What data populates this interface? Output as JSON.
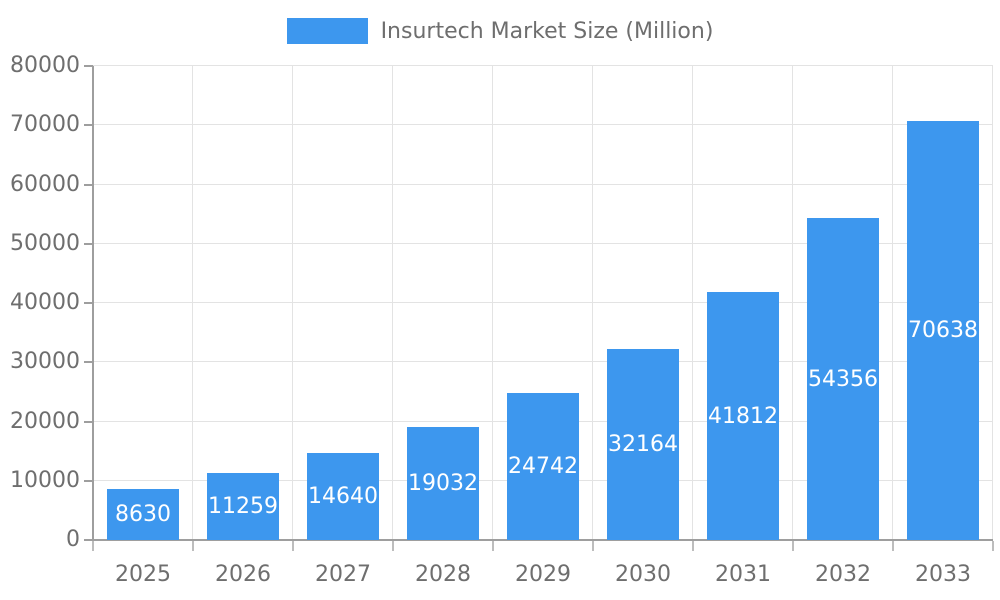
{
  "legend": {
    "label": "Insurtech Market Size (Million)",
    "swatch_color": "#3D97EE"
  },
  "chart_data": {
    "type": "bar",
    "title": "Insurtech Market Size (Million)",
    "categories": [
      "2025",
      "2026",
      "2027",
      "2028",
      "2029",
      "2030",
      "2031",
      "2032",
      "2033"
    ],
    "values": [
      8630,
      11259,
      14640,
      19032,
      24742,
      32164,
      41812,
      54356,
      70638
    ],
    "xlabel": "",
    "ylabel": "",
    "ylim": [
      0,
      80000
    ],
    "ytick_step": 10000,
    "yticks": [
      0,
      10000,
      20000,
      30000,
      40000,
      50000,
      60000,
      70000,
      80000
    ],
    "grid": true,
    "legend_position": "top",
    "value_labels": "inside-center",
    "bar_color": "#3D97EE",
    "bar_label_color": "#FFFFFF",
    "axis_text_color": "#6E6E6E",
    "axis_line_color": "#9E9E9E",
    "x_tick_color": "#BDBDBD",
    "gridline_color": "#E3E3E3",
    "background_color": "#FFFFFF"
  }
}
